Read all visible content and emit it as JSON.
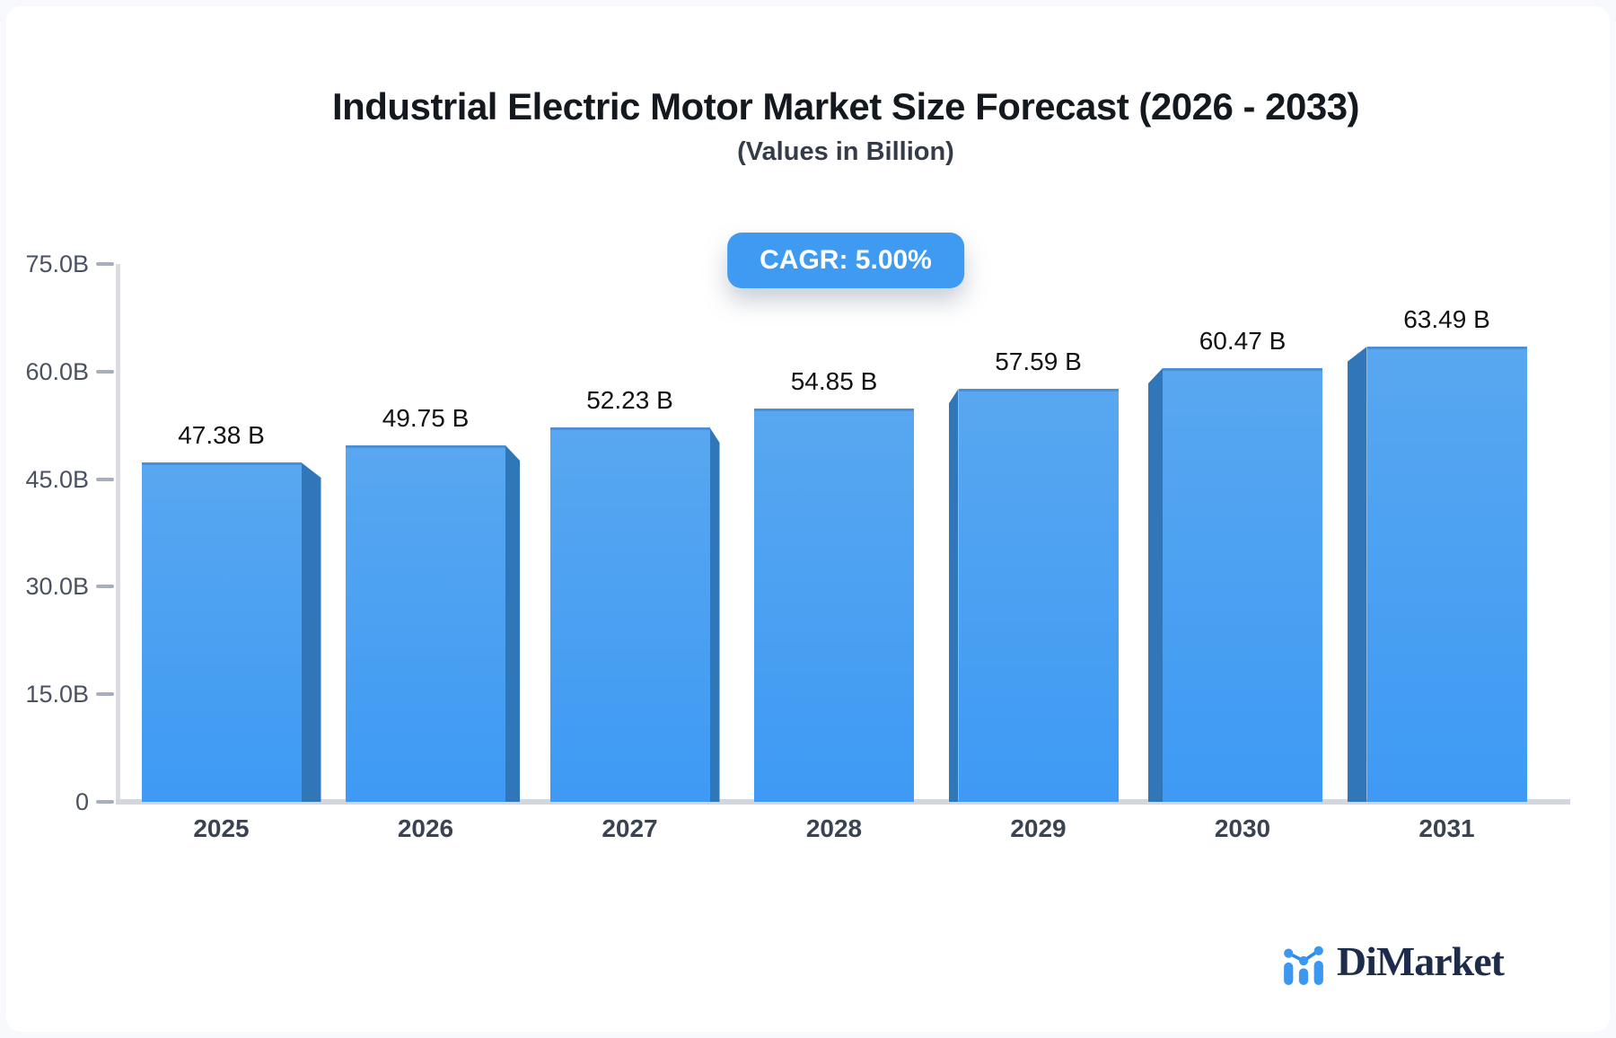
{
  "footer": {
    "brand": "DiMarket"
  },
  "chart_data": {
    "type": "bar",
    "title": "Industrial Electric Motor Market Size Forecast (2026 - 2033)",
    "subtitle": "(Values in Billion)",
    "cagr_label": "CAGR: 5.00%",
    "categories": [
      "2025",
      "2026",
      "2027",
      "2028",
      "2029",
      "2030",
      "2031"
    ],
    "values": [
      47.38,
      49.75,
      52.23,
      54.85,
      57.59,
      60.47,
      63.49
    ],
    "value_labels": [
      "47.38 B",
      "49.75 B",
      "52.23 B",
      "54.85 B",
      "57.59 B",
      "60.47 B",
      "63.49 B"
    ],
    "unit": "B",
    "ylim": [
      0,
      75
    ],
    "ytick_labels": [
      "75.0B",
      "60.0B",
      "45.0B",
      "30.0B",
      "15.0B",
      "0"
    ],
    "ytick_values": [
      75,
      60,
      45,
      30,
      15,
      0
    ],
    "grid": false,
    "legend": "none",
    "bar_style": "3d-perspective, side faces angle toward center column",
    "colors": {
      "bar_face_top": "#58a7f0",
      "bar_face_bottom": "#3e9af4",
      "bar_top_edge": "#4a90d9",
      "bar_side": "#2f77b9",
      "badge_bg": "#3e9bf1",
      "badge_text": "#ffffff",
      "axis_line": "#d9dce1",
      "tick_text": "#4a5261",
      "value_text": "#101214",
      "brand_text": "#1e2c4b",
      "brand_icon_blue": "#3b97f0"
    }
  }
}
